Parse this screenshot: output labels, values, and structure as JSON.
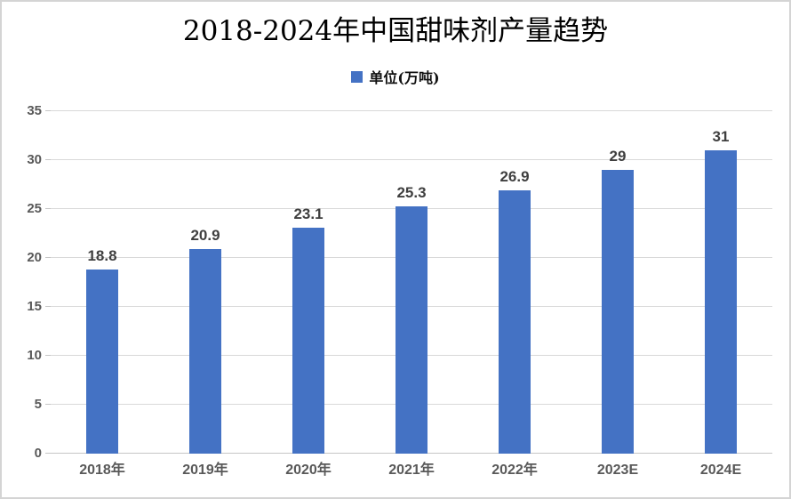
{
  "chart_data": {
    "type": "bar",
    "title": "2018-2024年中国甜味剂产量趋势",
    "legend": [
      "单位(万吨)"
    ],
    "legend_position": "top",
    "categories": [
      "2018年",
      "2019年",
      "2020年",
      "2021年",
      "2022年",
      "2023E",
      "2024E"
    ],
    "values": [
      18.8,
      20.9,
      23.1,
      25.3,
      26.9,
      29,
      31
    ],
    "value_labels": [
      "18.8",
      "20.9",
      "23.1",
      "25.3",
      "26.9",
      "29",
      "31"
    ],
    "xlabel": "",
    "ylabel": "",
    "ylim": [
      0,
      35
    ],
    "yticks": [
      0,
      5,
      10,
      15,
      20,
      25,
      30,
      35
    ],
    "grid": true,
    "colors": {
      "bar": "#4472C4",
      "gridline": "#D9D9D9",
      "axis_line": "#C6C6C6",
      "tick_label": "#595959",
      "value_label": "#3F3F3F",
      "title": "#000000",
      "frame_border": "#D4D4D4"
    }
  }
}
